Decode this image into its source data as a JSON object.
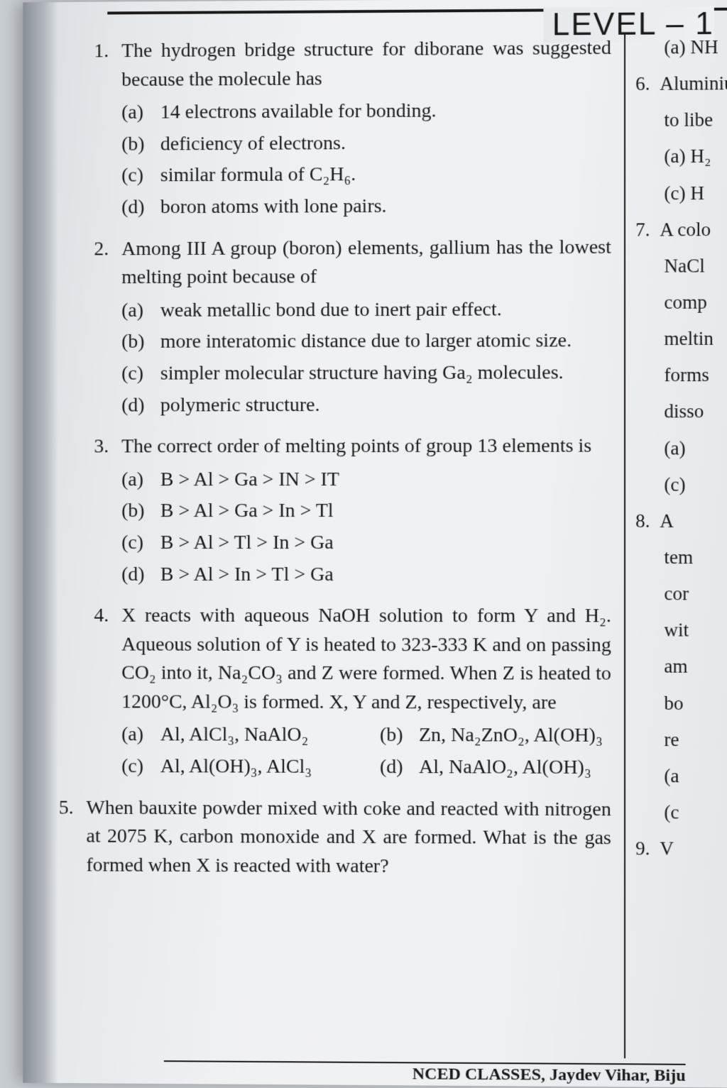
{
  "header": {
    "level": "LEVEL – 1"
  },
  "left_questions": [
    {
      "num": "1.",
      "stem": "The hydrogen bridge structure for diborane was suggested because the molecule has",
      "options": [
        {
          "label": "(a)",
          "text": "14 electrons available for bonding."
        },
        {
          "label": "(b)",
          "text": "deficiency of electrons."
        },
        {
          "label": "(c)",
          "text": "similar formula of C₂H₆."
        },
        {
          "label": "(d)",
          "text": "boron atoms with lone pairs."
        }
      ]
    },
    {
      "num": "2.",
      "stem": "Among III A group (boron) elements, gallium has the lowest melting point because of",
      "options": [
        {
          "label": "(a)",
          "text": "weak metallic bond due to inert pair effect."
        },
        {
          "label": "(b)",
          "text": "more interatomic distance due to larger atomic size."
        },
        {
          "label": "(c)",
          "text": "simpler molecular structure having Ga₂ molecules."
        },
        {
          "label": "(d)",
          "text": "polymeric structure."
        }
      ]
    },
    {
      "num": "3.",
      "stem": "The correct order of melting points of group 13 elements is",
      "options": [
        {
          "label": "(a)",
          "text": "B > Al > Ga > IN > IT"
        },
        {
          "label": "(b)",
          "text": "B > Al > Ga > In > Tl"
        },
        {
          "label": "(c)",
          "text": "B > Al > Tl > In > Ga"
        },
        {
          "label": "(d)",
          "text": "B > Al > In > Tl > Ga"
        }
      ]
    },
    {
      "num": "4.",
      "stem": "X reacts with aqueous NaOH solution to form Y and H₂. Aqueous solution of Y is heated to 323-333 K and on passing CO₂ into it, Na₂CO₃ and Z were formed. When Z is heated to 1200°C, Al₂O₃ is formed. X, Y and Z, respectively, are",
      "inline_options": [
        [
          {
            "label": "(a)",
            "text": "Al, AlCl₃, NaAlO₂"
          },
          {
            "label": "(b)",
            "text": "Zn, Na₂ZnO₂, Al(OH)₃"
          }
        ],
        [
          {
            "label": "(c)",
            "text": "Al, Al(OH)₃, AlCl₃"
          },
          {
            "label": "(d)",
            "text": "Al, NaAlO₂, Al(OH)₃"
          }
        ]
      ]
    },
    {
      "num": "5.",
      "stem": "When bauxite powder mixed with coke and reacted with nitrogen at 2075 K, carbon monoxide and X are formed. What is the gas formed when X is reacted with water?"
    }
  ],
  "right_fragments": [
    {
      "type": "opt",
      "label": "(a)",
      "text": "NH"
    },
    {
      "type": "q",
      "num": "6.",
      "text": "Aluminiu"
    },
    {
      "type": "plain",
      "text": "to libe"
    },
    {
      "type": "opt",
      "label": "(a)",
      "text": "H₂"
    },
    {
      "type": "opt",
      "label": "(c)",
      "text": "H"
    },
    {
      "type": "q",
      "num": "7.",
      "text": "A colo"
    },
    {
      "type": "plain",
      "text": "NaCl"
    },
    {
      "type": "plain",
      "text": "comp"
    },
    {
      "type": "plain",
      "text": "meltin"
    },
    {
      "type": "plain",
      "text": "forms"
    },
    {
      "type": "plain",
      "text": "disso"
    },
    {
      "type": "opt",
      "label": "(a)",
      "text": ""
    },
    {
      "type": "opt",
      "label": "(c)",
      "text": ""
    },
    {
      "type": "q",
      "num": "8.",
      "text": "A"
    },
    {
      "type": "plain",
      "text": "tem"
    },
    {
      "type": "plain",
      "text": "cor"
    },
    {
      "type": "plain",
      "text": "wit"
    },
    {
      "type": "plain",
      "text": "am"
    },
    {
      "type": "plain",
      "text": "bo"
    },
    {
      "type": "plain",
      "text": "re"
    },
    {
      "type": "plain",
      "text": "(a"
    },
    {
      "type": "plain",
      "text": "(c"
    },
    {
      "type": "q",
      "num": "9.",
      "text": "V"
    }
  ],
  "footer": "NCED CLASSES, Jaydev Vihar, Biju"
}
